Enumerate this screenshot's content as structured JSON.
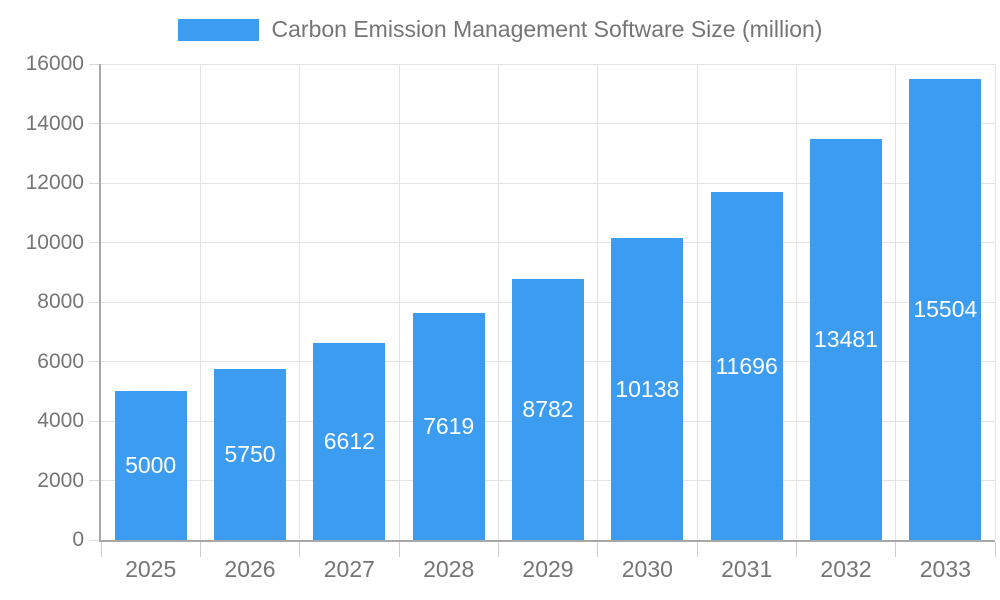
{
  "chart_data": {
    "type": "bar",
    "categories": [
      "2025",
      "2026",
      "2027",
      "2028",
      "2029",
      "2030",
      "2031",
      "2032",
      "2033"
    ],
    "series": [
      {
        "name": "Carbon Emission Management Software Size (million)",
        "values": [
          5000,
          5750,
          6612,
          7619,
          8782,
          10138,
          11696,
          13481,
          15504
        ]
      }
    ],
    "title": "",
    "xlabel": "",
    "ylabel": "",
    "ylim": [
      0,
      16000
    ],
    "yticks": [
      0,
      2000,
      4000,
      6000,
      8000,
      10000,
      12000,
      14000,
      16000
    ],
    "grid": true,
    "legend_position": "top",
    "value_labels": "inside-center",
    "colors": {
      "bar": "#3b9cf0",
      "axis_text": "#757575",
      "value_text": "#ffffff",
      "gridline": "#e3e3e3",
      "axis_line": "#a8a8a8"
    }
  }
}
